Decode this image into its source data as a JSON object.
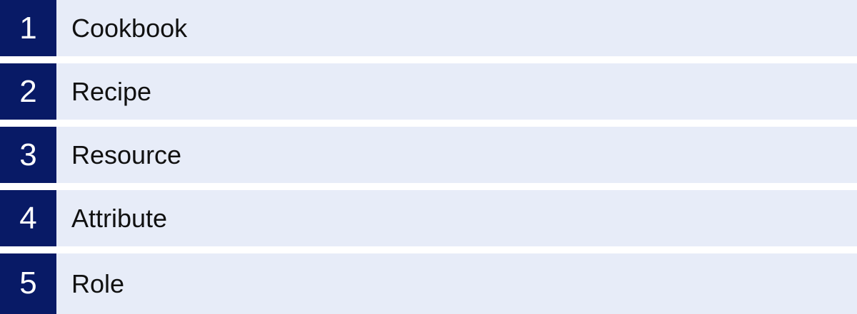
{
  "list": {
    "items": [
      {
        "number": "1",
        "label": "Cookbook"
      },
      {
        "number": "2",
        "label": "Recipe"
      },
      {
        "number": "3",
        "label": "Resource"
      },
      {
        "number": "4",
        "label": "Attribute"
      },
      {
        "number": "5",
        "label": "Role"
      }
    ]
  },
  "colors": {
    "badge_bg": "#081a66",
    "badge_text": "#ffffff",
    "row_bg": "#e7ecf8",
    "gap_bg": "#ffffff",
    "label_text": "#111111"
  }
}
